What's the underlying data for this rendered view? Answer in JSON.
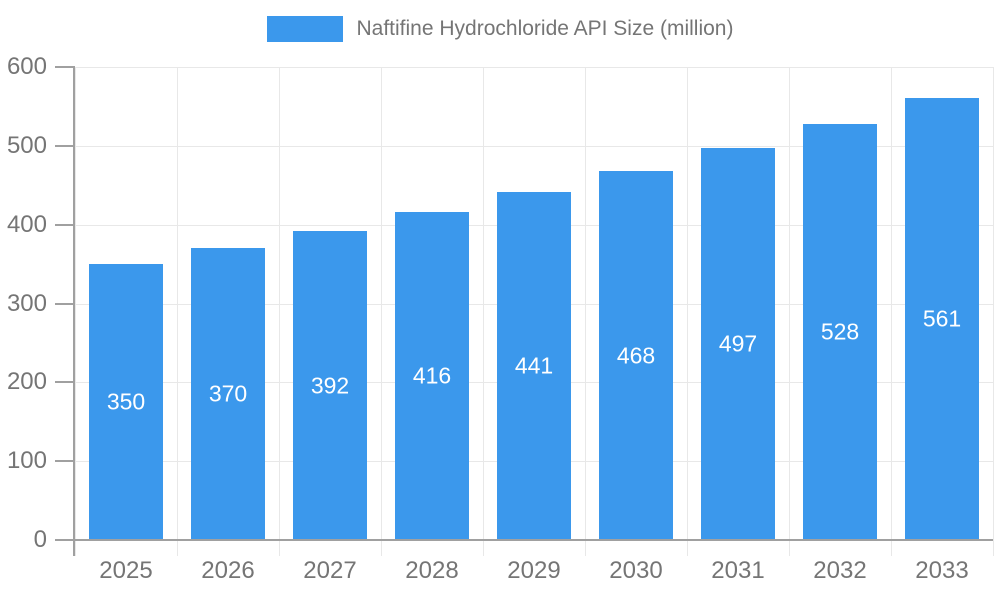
{
  "chart_data": {
    "type": "bar",
    "title": "Naftifine Hydrochloride API Size (million)",
    "categories": [
      "2025",
      "2026",
      "2027",
      "2028",
      "2029",
      "2030",
      "2031",
      "2032",
      "2033"
    ],
    "values": [
      350,
      370,
      392,
      416,
      441,
      468,
      497,
      528,
      561
    ],
    "xlabel": "",
    "ylabel": "",
    "ylim": [
      0,
      600
    ],
    "yticks": [
      0,
      100,
      200,
      300,
      400,
      500,
      600
    ],
    "grid": true,
    "legend_position": "top-center",
    "value_label_position": "inside-center",
    "colors": {
      "bar": "#3b98ec",
      "axis": "#a0a0a0",
      "grid": "#e8e8e8",
      "tick_label": "#757575",
      "value_label": "#ffffff",
      "background": "#ffffff"
    }
  }
}
